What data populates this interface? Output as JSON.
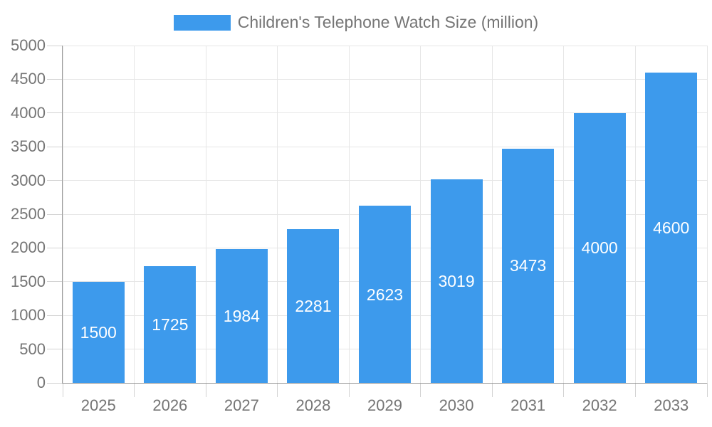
{
  "chart_data": {
    "type": "bar",
    "title": "",
    "categories": [
      "2025",
      "2026",
      "2027",
      "2028",
      "2029",
      "2030",
      "2031",
      "2032",
      "2033"
    ],
    "series": [
      {
        "name": "Children's Telephone Watch Size (million)",
        "values": [
          1500,
          1725,
          1984,
          2281,
          2623,
          3019,
          3473,
          4000,
          4600
        ]
      }
    ],
    "xlabel": "",
    "ylabel": "",
    "ylim": [
      0,
      5000
    ],
    "ytick_interval": 500,
    "yticks": [
      0,
      500,
      1000,
      1500,
      2000,
      2500,
      3000,
      3500,
      4000,
      4500,
      5000
    ],
    "grid": true,
    "legend_position": "top",
    "bar_value_labels": "inside-middle"
  },
  "style": {
    "bar_color": "#3d9aec",
    "bar_label_color": "#ffffff",
    "axis_line_color": "#999999",
    "grid_line_color": "#e6e6e6",
    "tick_line_color": "#d2d2d2",
    "axis_label_color": "#757575",
    "legend_text_color": "#757575",
    "background_color": "#ffffff"
  }
}
